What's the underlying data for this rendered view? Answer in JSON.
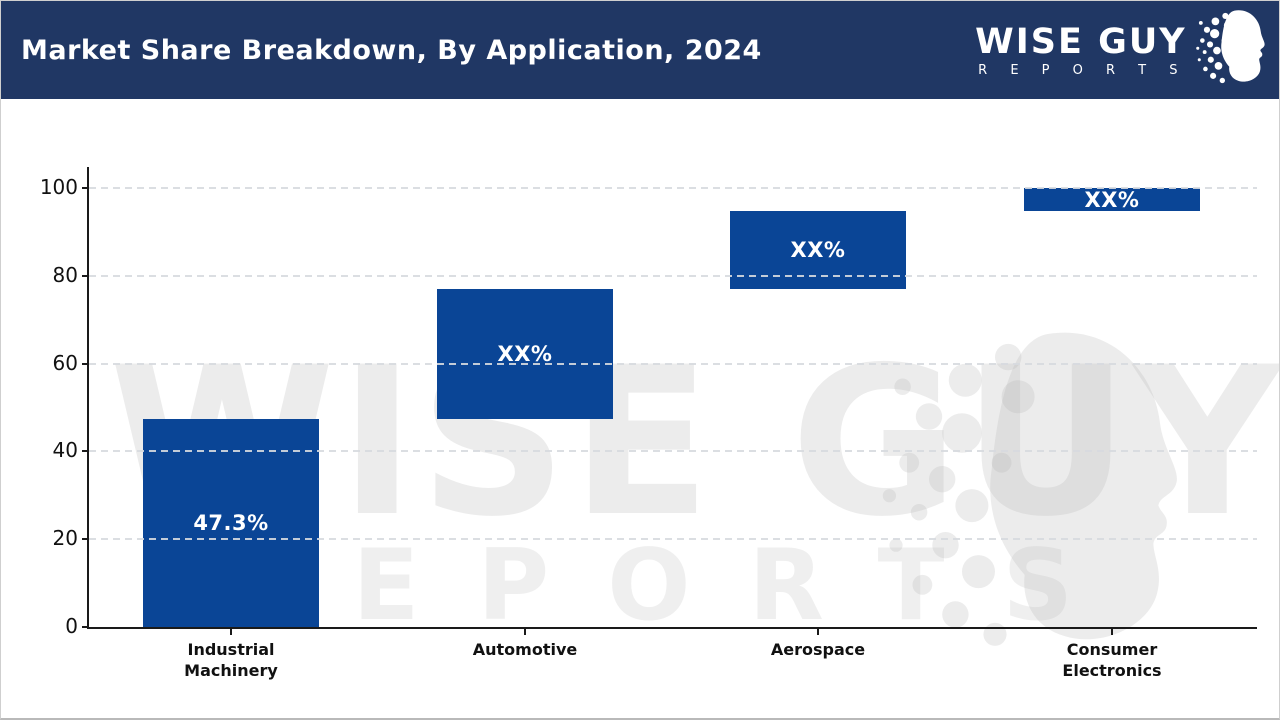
{
  "header": {
    "title": "Market Share Breakdown, By Application, 2024",
    "logo": {
      "line1": "WISE GUY",
      "line2": "R E P O R T S"
    }
  },
  "watermark": {
    "line1": "WISE GUY",
    "line2": "REPORTS"
  },
  "colors": {
    "header_bg": "#203764",
    "bar": "#0a4596",
    "bar_label": "#ffffff",
    "grid": "#d7dadf",
    "axis": "#1a1a1a",
    "watermark": "#efefef"
  },
  "chart_data": {
    "type": "bar",
    "subtype": "waterfall",
    "title": "Market Share Breakdown, By Application, 2024",
    "xlabel": "",
    "ylabel": "",
    "categories": [
      "Industrial\nMachinery",
      "Automotive",
      "Aerospace",
      "Consumer\nElectronics"
    ],
    "segments": [
      {
        "category": "Industrial Machinery",
        "start": 0,
        "end": 47.3,
        "value": 47.3,
        "label": "47.3%"
      },
      {
        "category": "Automotive",
        "start": 47.3,
        "end": 77.0,
        "value": 29.7,
        "label": "XX%"
      },
      {
        "category": "Aerospace",
        "start": 77.0,
        "end": 94.7,
        "value": 17.7,
        "label": "XX%"
      },
      {
        "category": "Consumer Electronics",
        "start": 94.7,
        "end": 100.0,
        "value": 5.3,
        "label": "XX%"
      }
    ],
    "yticks": [
      0,
      20,
      40,
      60,
      80,
      100
    ],
    "ylim": [
      0,
      104
    ],
    "grid": "dashed-horizontal",
    "legend": "none"
  }
}
